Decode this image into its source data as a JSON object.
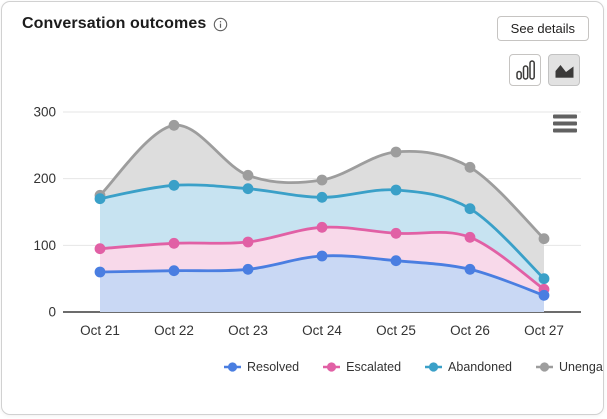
{
  "card": {
    "title": "Conversation outcomes",
    "see_details_label": "See details",
    "toolbar": {
      "column_chart_toggle": "column view",
      "area_chart_toggle": "area view (selected)",
      "context_menu": "chart context menu"
    }
  },
  "chart_data": {
    "type": "area",
    "title": "Conversation outcomes",
    "categories": [
      "Oct 21",
      "Oct 22",
      "Oct 23",
      "Oct 24",
      "Oct 25",
      "Oct 26",
      "Oct 27"
    ],
    "series": [
      {
        "name": "Resolved",
        "color": "#4a7ee1",
        "fill": "#c9d8f4",
        "values": [
          60,
          62,
          64,
          84,
          77,
          64,
          25
        ]
      },
      {
        "name": "Escalated",
        "color": "#e160a5",
        "fill": "#f8d9ea",
        "values": [
          95,
          103,
          105,
          127,
          118,
          112,
          34
        ]
      },
      {
        "name": "Abandoned",
        "color": "#3aa0c8",
        "fill": "#c7e3f1",
        "values": [
          170,
          190,
          185,
          172,
          183,
          155,
          50
        ]
      },
      {
        "name": "Unengaged",
        "color": "#9d9d9d",
        "fill": "#dddddd",
        "values": [
          175,
          280,
          205,
          198,
          240,
          217,
          110
        ]
      }
    ],
    "draw_order": [
      "Unengaged",
      "Abandoned",
      "Escalated",
      "Resolved"
    ],
    "ylim": [
      0,
      300
    ],
    "yticks": [
      0,
      100,
      200,
      300
    ],
    "grid": true,
    "legend_position": "bottom",
    "colors": {
      "gridline": "#e6e6e6",
      "axis_line": "#3c3c3c",
      "tick_label": "#333333"
    }
  }
}
